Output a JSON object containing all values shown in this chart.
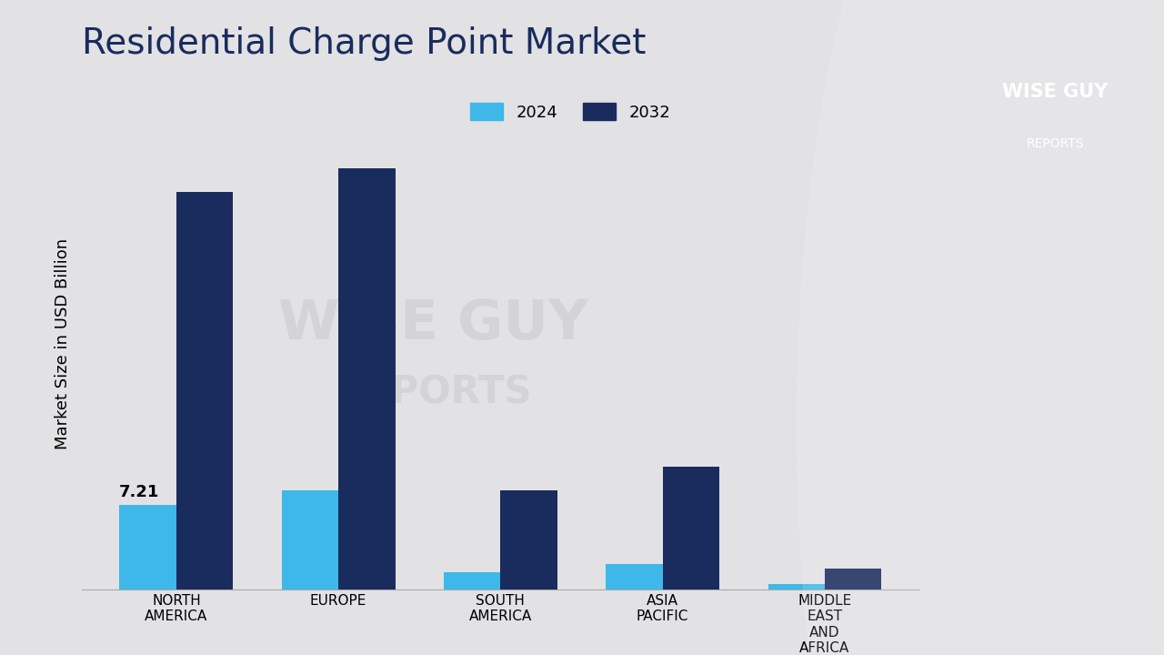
{
  "title": "Residential Charge Point Market",
  "ylabel": "Market Size in USD Billion",
  "categories": [
    "NORTH\nAMERICA",
    "EUROPE",
    "SOUTH\nAMERICA",
    "ASIA\nPACIFIC",
    "MIDDLE\nEAST\nAND\nAFRICA"
  ],
  "values_2024": [
    7.21,
    8.5,
    1.5,
    2.2,
    0.5
  ],
  "values_2032": [
    34.0,
    36.0,
    8.5,
    10.5,
    1.8
  ],
  "color_2024": "#3db8e8",
  "color_2032": "#1a2b5e",
  "annotation_2024_value": "7.21",
  "annotation_2024_idx": 0,
  "background_color": "#e2e2e4",
  "right_panel_color": "#1a2b5e",
  "title_color": "#1a2b5e",
  "title_fontsize": 28,
  "ylabel_fontsize": 13,
  "legend_fontsize": 13,
  "tick_fontsize": 11,
  "bar_width": 0.35,
  "ylim_max": 42,
  "logo_line1": "WISE GUY",
  "logo_line2": "REPORTS"
}
